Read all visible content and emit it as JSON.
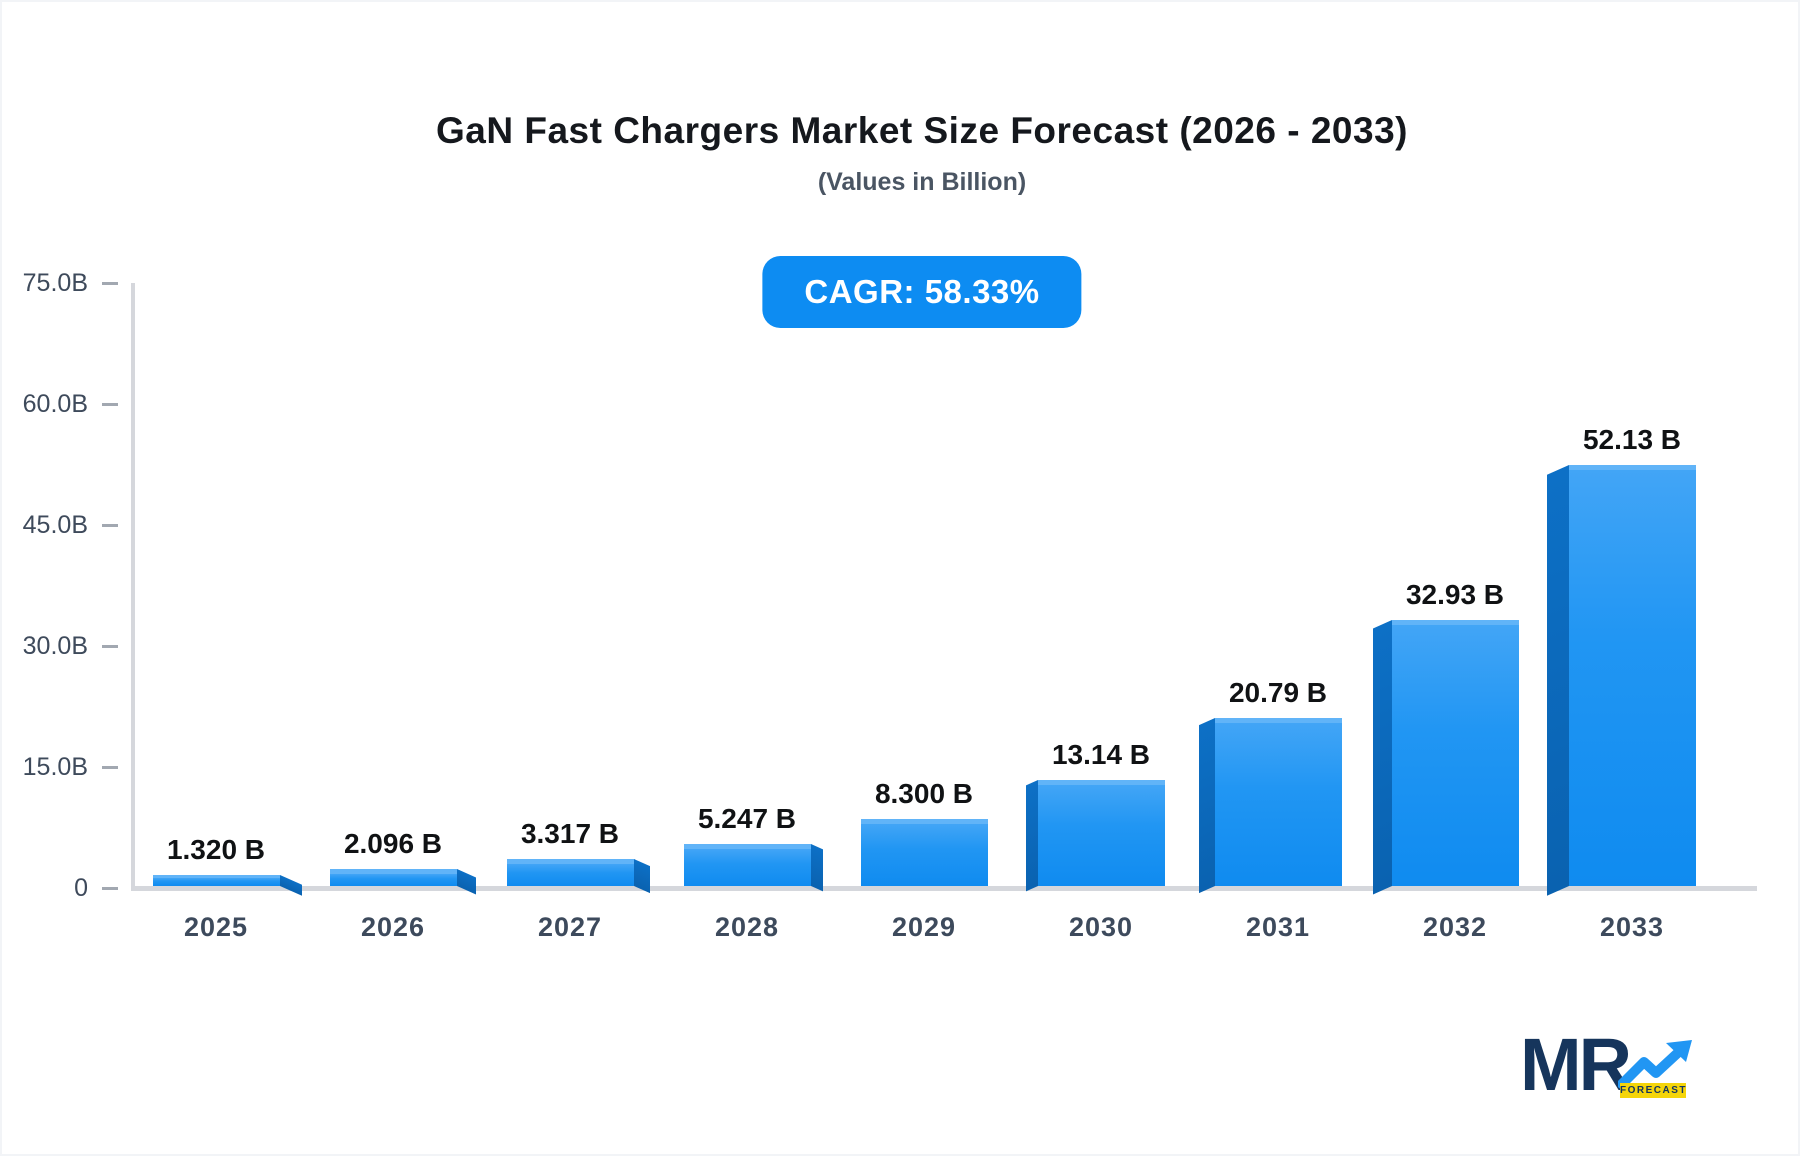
{
  "header": {
    "title": "GaN Fast Chargers Market Size Forecast (2026 - 2033)",
    "subtitle": "(Values in Billion)",
    "cagr_badge": "CAGR: 58.33%"
  },
  "chart_data": {
    "type": "bar",
    "title": "GaN Fast Chargers Market Size Forecast (2026 - 2033)",
    "subtitle": "(Values in Billion)",
    "cagr": "58.33%",
    "categories": [
      "2025",
      "2026",
      "2027",
      "2028",
      "2029",
      "2030",
      "2031",
      "2032",
      "2033"
    ],
    "values": [
      1.32,
      2.096,
      3.317,
      5.247,
      8.3,
      13.14,
      20.79,
      32.93,
      52.13
    ],
    "value_labels": [
      "1.320 B",
      "2.096 B",
      "3.317 B",
      "5.247 B",
      "8.300 B",
      "13.14 B",
      "20.79 B",
      "32.93 B",
      "52.13 B"
    ],
    "xlabel": "",
    "ylabel": "",
    "ylim": [
      0,
      75
    ],
    "yticks": [
      {
        "value": 0,
        "label": "0"
      },
      {
        "value": 15,
        "label": "15.0B"
      },
      {
        "value": 30,
        "label": "30.0B"
      },
      {
        "value": 45,
        "label": "45.0B"
      },
      {
        "value": 60,
        "label": "60.0B"
      },
      {
        "value": 75,
        "label": "75.0B"
      }
    ],
    "grid": false,
    "legend": "none",
    "bar_style": "3d-blue"
  },
  "colors": {
    "badge_bg": "#0d8cf2",
    "bar_face": "#2196f3",
    "bar_face_top": "#42a5f6",
    "bar_face_bottom": "#0f8bf0",
    "bar_cap": "#61b4f8",
    "bar_side": "#0a62b0",
    "axis": "#d5d7dc",
    "tick_text": "#3e4a5b",
    "value_text": "#101214",
    "logo_navy": "#16355c",
    "logo_yellow": "#f5d50a",
    "logo_arrow_blue": "#2196f3"
  },
  "logo": {
    "brand": "MR",
    "tagline": "FORECAST"
  }
}
